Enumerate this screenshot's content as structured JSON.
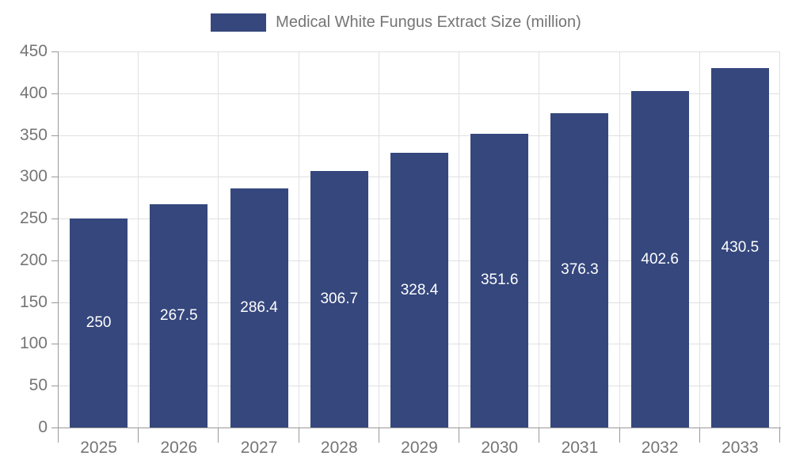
{
  "chart_data": {
    "type": "bar",
    "title": "",
    "legend_label": "Medical White Fungus Extract Size (million)",
    "categories": [
      "2025",
      "2026",
      "2027",
      "2028",
      "2029",
      "2030",
      "2031",
      "2032",
      "2033"
    ],
    "values": [
      250,
      267.5,
      286.4,
      306.7,
      328.4,
      351.6,
      376.3,
      402.6,
      430.5
    ],
    "value_labels": [
      "250",
      "267.5",
      "286.4",
      "306.7",
      "328.4",
      "351.6",
      "376.3",
      "402.6",
      "430.5"
    ],
    "xlabel": "",
    "ylabel": "",
    "y_ticks": [
      0,
      50,
      100,
      150,
      200,
      250,
      300,
      350,
      400,
      450
    ],
    "ylim": [
      0,
      450
    ],
    "grid": true,
    "legend_position": "top",
    "colors": {
      "bar": "#35477d",
      "bar_value_label": "#ffffff",
      "grid_line": "#e0e0e0",
      "axis_line": "#999999",
      "tick_mark": "#999999",
      "tick_label": "#757575",
      "legend_text": "#757575",
      "background": "#ffffff"
    }
  }
}
